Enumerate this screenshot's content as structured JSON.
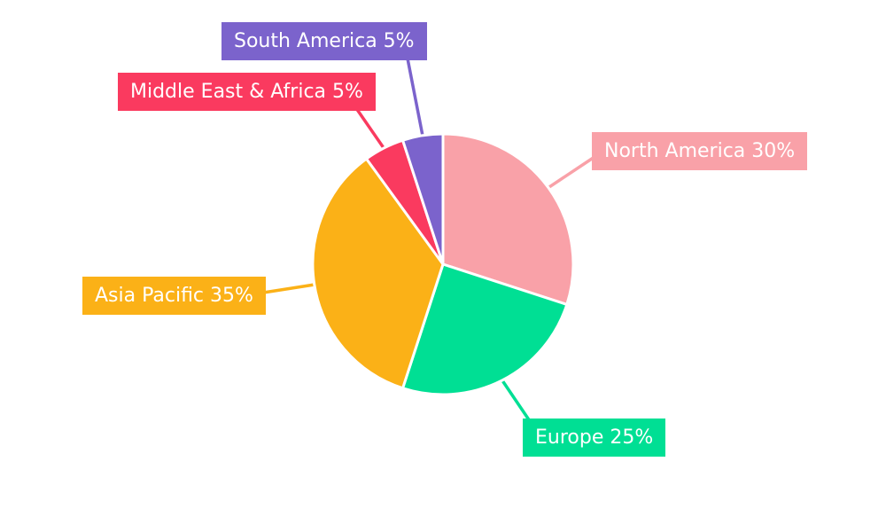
{
  "chart_data": {
    "type": "pie",
    "title": "",
    "legend_position": "none",
    "background": "#ffffff",
    "value_suffix": "%",
    "start_angle_deg": 0,
    "direction": "clockwise",
    "slice_border_color": "#ffffff",
    "series": [
      {
        "label": "North America",
        "value": 30,
        "color": "#F9A1A8",
        "display": "North America 30%"
      },
      {
        "label": "Europe",
        "value": 25,
        "color": "#00DF94",
        "display": "Europe 25%"
      },
      {
        "label": "Asia Pacific",
        "value": 35,
        "color": "#FBB117",
        "display": "Asia Pacific 35%"
      },
      {
        "label": "Middle East & Africa",
        "value": 5,
        "color": "#FA3A5F",
        "display": "Middle East & Africa 5%"
      },
      {
        "label": "South America",
        "value": 5,
        "color": "#7B63CC",
        "display": "South America 5%"
      }
    ]
  }
}
